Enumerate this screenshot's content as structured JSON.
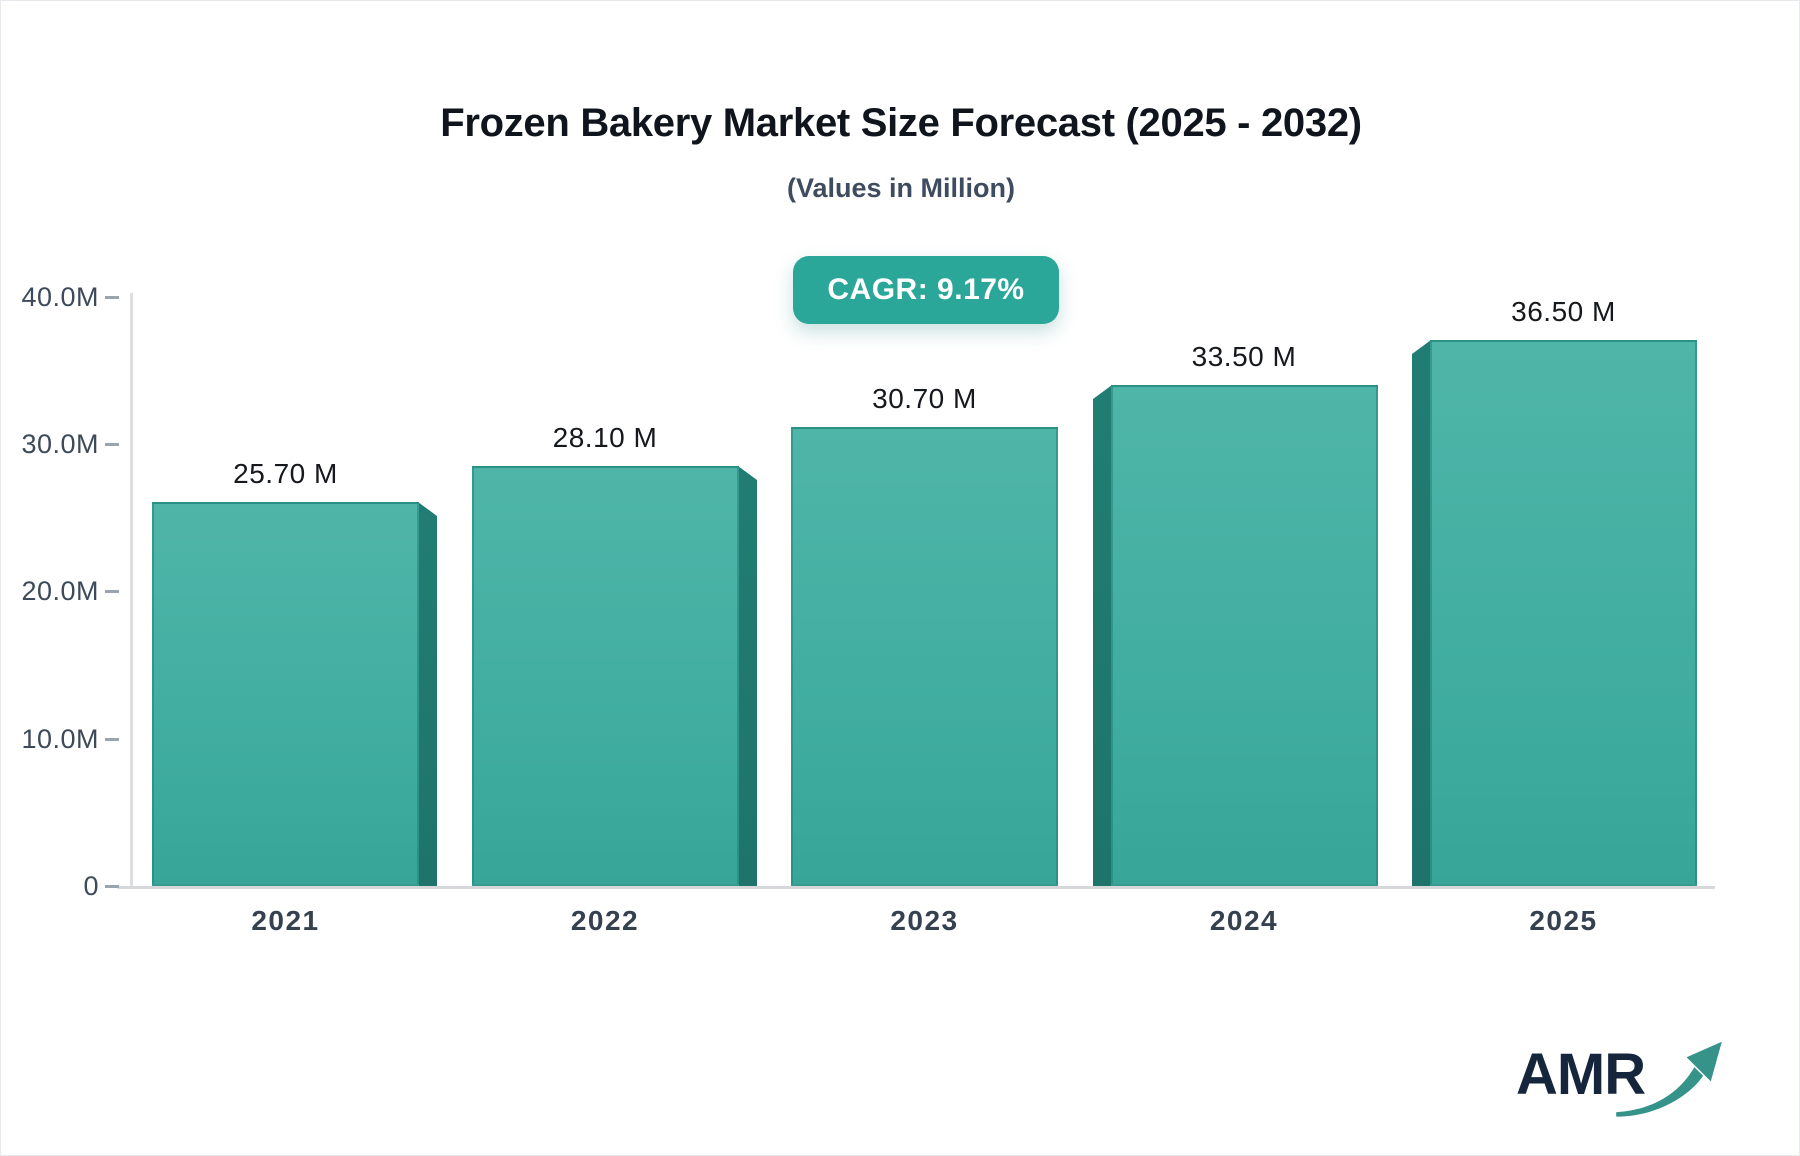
{
  "header": {
    "title": "Frozen Bakery Market Size Forecast (2025 - 2032)",
    "subtitle": "(Values in Million)"
  },
  "badge": {
    "label": "CAGR: 9.17%",
    "bg_color": "#2ba79a"
  },
  "chart_data": {
    "type": "bar",
    "title": "Frozen Bakery Market Size Forecast (2025 - 2032)",
    "subtitle": "(Values in Million)",
    "categories": [
      "2021",
      "2022",
      "2023",
      "2024",
      "2025"
    ],
    "values": [
      25.7,
      28.1,
      30.7,
      33.5,
      36.5
    ],
    "value_labels": [
      "25.70 M",
      "28.10 M",
      "30.70 M",
      "33.50 M",
      "36.50 M"
    ],
    "cagr_label": "CAGR: 9.17%",
    "xlabel": "",
    "ylabel": "",
    "ylim": [
      0,
      40
    ],
    "yticks": [
      {
        "value": 40,
        "label": "40.0M"
      },
      {
        "value": 30,
        "label": "30.0M"
      },
      {
        "value": 20,
        "label": "20.0M"
      },
      {
        "value": 10,
        "label": "10.0M"
      },
      {
        "value": 0,
        "label": "0"
      }
    ],
    "grid": false,
    "legend": "none",
    "bar_color_top": "#50b5a9",
    "bar_color_bottom": "#37a698",
    "bar_side_color": "#217d73"
  },
  "logo": {
    "text": "AMR",
    "arrow_icon": "trend-up-arrow-icon",
    "text_color": "#15263c",
    "arrow_color": "#35938a"
  }
}
